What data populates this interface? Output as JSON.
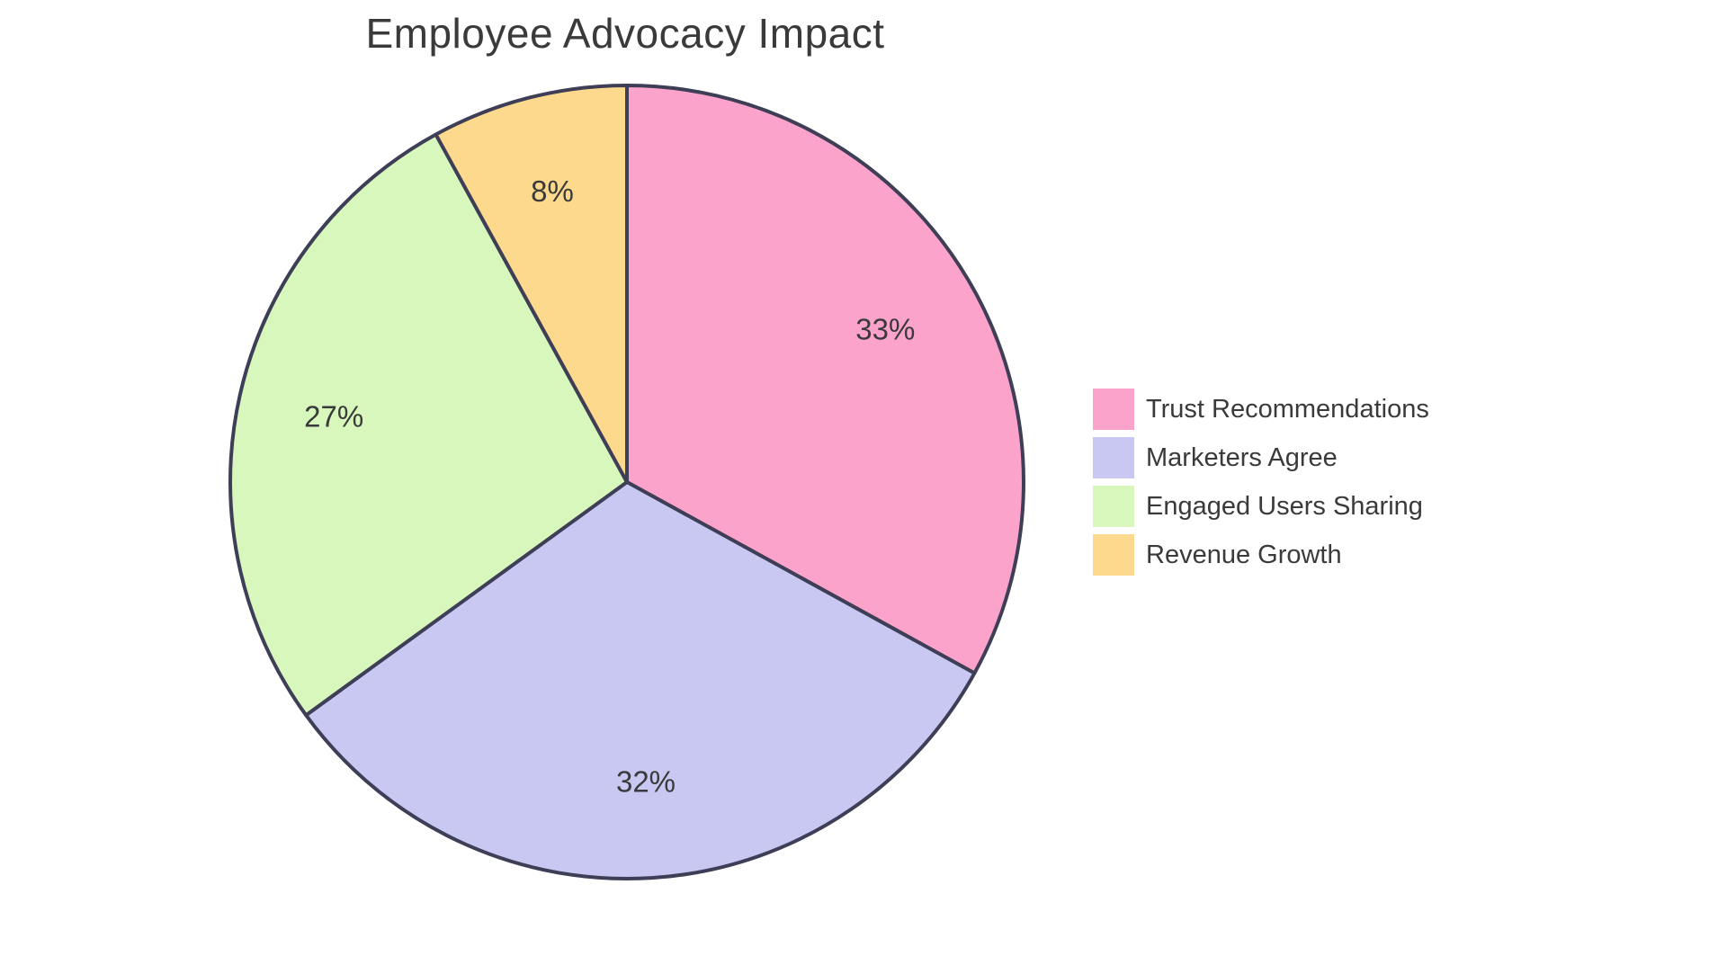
{
  "chart_data": {
    "type": "pie",
    "title": "Employee Advocacy Impact",
    "categories": [
      "Trust Recommendations",
      "Marketers Agree",
      "Engaged Users Sharing",
      "Revenue Growth"
    ],
    "values": [
      33,
      32,
      27,
      8
    ],
    "percent_labels": [
      "33%",
      "32%",
      "27%",
      "8%"
    ],
    "colors": [
      "#FCA3CC",
      "#C9C8F3",
      "#D8F7BD",
      "#FCD98C"
    ],
    "stroke_color": "#3E3E56",
    "text_color": "#3A3A3A",
    "legend_position": "right",
    "start_angle_deg": 0,
    "direction": "clockwise"
  }
}
